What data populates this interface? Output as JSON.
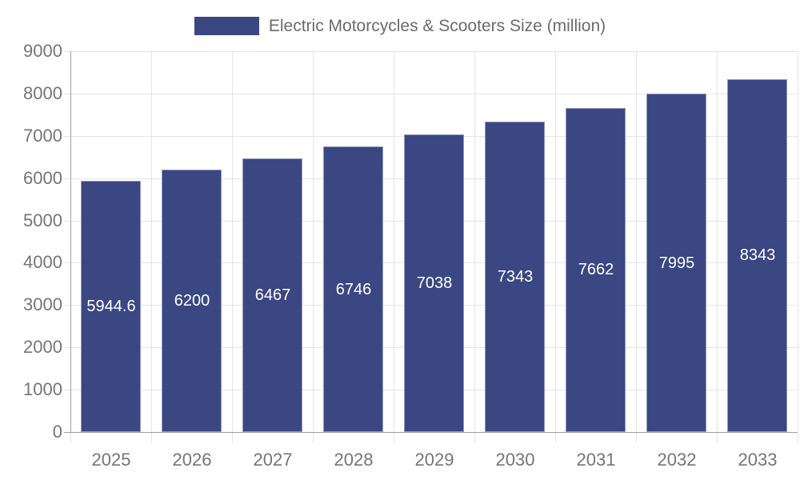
{
  "chart_data": {
    "type": "bar",
    "title": "Electric Motorcycles & Scooters Size (million)",
    "legend_entries": [
      "Electric Motorcycles & Scooters Size (million)"
    ],
    "legend_position": "top",
    "categories": [
      "2025",
      "2026",
      "2027",
      "2028",
      "2029",
      "2030",
      "2031",
      "2032",
      "2033"
    ],
    "values": [
      5944.6,
      6200,
      6467,
      6746,
      7038,
      7343,
      7662,
      7995,
      8343
    ],
    "value_labels": [
      "5944.6",
      "6200",
      "6467",
      "6746",
      "7038",
      "7343",
      "7662",
      "7995",
      "8343"
    ],
    "value_label_position": "inside-center",
    "xlabel": "",
    "ylabel": "",
    "ylim": [
      0,
      9000
    ],
    "ytick_interval": 1000,
    "yticks": [
      0,
      1000,
      2000,
      3000,
      4000,
      5000,
      6000,
      7000,
      8000,
      9000
    ],
    "grid": true,
    "colors": {
      "bar": "#3A4782",
      "grid_line": "#E4E4E8",
      "axis_line": "#9EA0A4",
      "axis_label": "#757575",
      "legend_text": "#6B6B6B",
      "value_label": "#FFFFFF",
      "background": "#FFFFFF"
    }
  }
}
